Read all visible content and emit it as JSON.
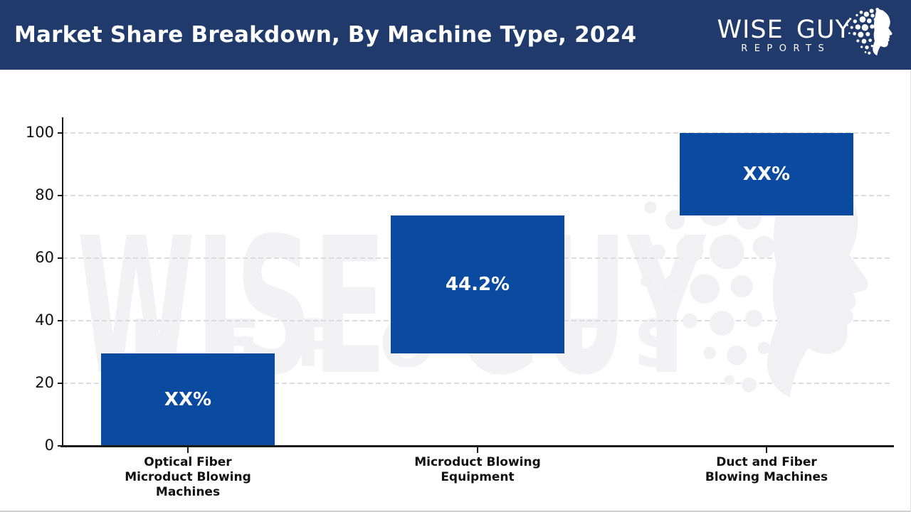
{
  "header": {
    "title": "Market Share Breakdown, By Machine Type, 2024",
    "logo": {
      "name_line": "WISE GUY",
      "reports_line": "REPORTS"
    }
  },
  "watermark": {
    "name_line": "WISE GUY",
    "reports_line": "REPORTS"
  },
  "colors": {
    "header_bg": "#1f3a6b",
    "bar": "#0b4aa1",
    "bar_label_text": "#ffffff",
    "title_text": "#ffffff",
    "watermark": "#f2f2f4",
    "gridline": "#dcdcdc",
    "axis": "#1a1a1a"
  },
  "chart_data": {
    "type": "bar",
    "subtype": "floating-waterfall",
    "title": "Market Share Breakdown, By Machine Type, 2024",
    "categories": [
      [
        "Optical Fiber",
        "Microduct Blowing",
        "Machines"
      ],
      [
        "Microduct Blowing",
        "Equipment"
      ],
      [
        "Duct and Fiber",
        "Blowing Machines"
      ]
    ],
    "segments": [
      {
        "start": 0,
        "end": 29.5,
        "value": 29.5,
        "label": "XX%"
      },
      {
        "start": 29.5,
        "end": 73.7,
        "value": 44.2,
        "label": "44.2%"
      },
      {
        "start": 73.7,
        "end": 100,
        "value": 26.3,
        "label": "XX%"
      }
    ],
    "ylim": [
      0,
      100
    ],
    "yticks": [
      0,
      20,
      40,
      60,
      80,
      100
    ],
    "bar_color": "#0b4aa1",
    "grid": "dashed-horizontal",
    "legend": "none"
  }
}
